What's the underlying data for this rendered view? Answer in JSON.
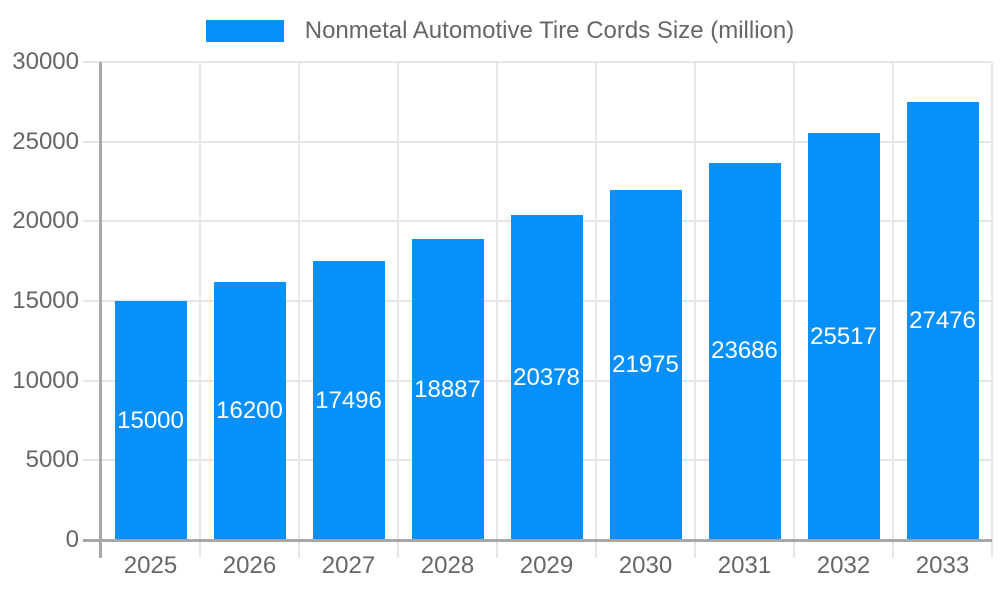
{
  "legend": {
    "label": "Nonmetal Automotive Tire Cords Size (million)"
  },
  "colors": {
    "bar": "#0590fb",
    "bar_label": "#ffffff",
    "grid": "#e6e6e6",
    "axis": "#a7a7a7",
    "text": "#666666",
    "background": "#ffffff"
  },
  "chart_data": {
    "type": "bar",
    "title": "Nonmetal Automotive Tire Cords Size (million)",
    "categories": [
      "2025",
      "2026",
      "2027",
      "2028",
      "2029",
      "2030",
      "2031",
      "2032",
      "2033"
    ],
    "values": [
      15000,
      16200,
      17496,
      18887,
      20378,
      21975,
      23686,
      25517,
      27476
    ],
    "xlabel": "",
    "ylabel": "",
    "ylim": [
      0,
      30000
    ],
    "ytick_step": 5000,
    "ytick_labels": [
      "0",
      "5000",
      "10000",
      "15000",
      "20000",
      "25000",
      "30000"
    ],
    "grid": true,
    "legend_position": "top",
    "bar_labels_shown": true,
    "bar_label_position": "center-inside"
  }
}
